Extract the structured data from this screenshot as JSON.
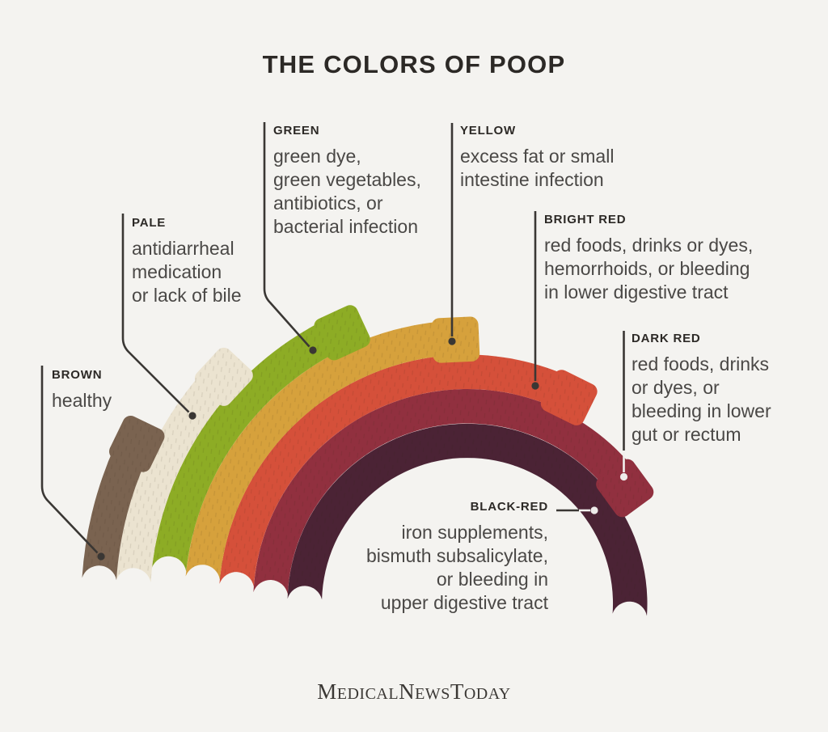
{
  "title": "THE COLORS OF POOP",
  "background": "#f4f3f0",
  "pointer": {
    "color": "#3a3734",
    "light_color": "#f2f0ee",
    "light_dot_color": "#eeecea"
  },
  "text": {
    "heading_color": "#2c2926",
    "body_color": "#4a4846"
  },
  "bands": [
    {
      "name": "brown",
      "color": "#7a6350"
    },
    {
      "name": "pale",
      "color": "#ebe3d0"
    },
    {
      "name": "green",
      "color": "#8dac25"
    },
    {
      "name": "yellow",
      "color": "#d6a13c"
    },
    {
      "name": "bright-red",
      "color": "#d5503a"
    },
    {
      "name": "dark-red",
      "color": "#91303f"
    },
    {
      "name": "black-red",
      "color": "#4b2335"
    }
  ],
  "labels": [
    {
      "heading": "BROWN",
      "body": "healthy"
    },
    {
      "heading": "PALE",
      "body": "antidiarrheal\nmedication\nor lack of bile"
    },
    {
      "heading": "GREEN",
      "body": "green dye,\ngreen vegetables,\nantibiotics, or\nbacterial infection"
    },
    {
      "heading": "YELLOW",
      "body": "excess fat or small\nintestine infection"
    },
    {
      "heading": "BRIGHT RED",
      "body": "red foods, drinks or dyes,\nhemorrhoids, or bleeding\nin lower digestive tract"
    },
    {
      "heading": "DARK RED",
      "body": "red foods, drinks\nor dyes, or\nbleeding in lower\ngut or rectum"
    },
    {
      "heading": "BLACK-RED",
      "body": "iron supplements,\nbismuth subsalicylate,\nor bleeding in\nupper digestive tract"
    }
  ],
  "logo": {
    "words": [
      "Medical",
      "News",
      "Today"
    ]
  }
}
